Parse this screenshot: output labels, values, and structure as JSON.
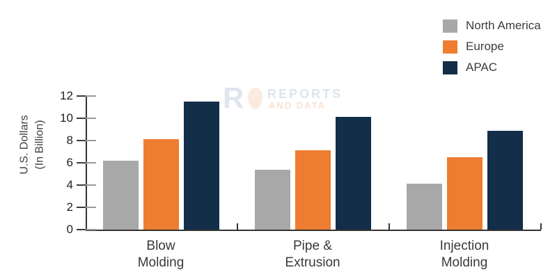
{
  "chart_data": {
    "type": "bar",
    "title": "",
    "categories": [
      "Blow Molding",
      "Pipe & Extrusion",
      "Injection Molding"
    ],
    "series": [
      {
        "name": "North America",
        "color": "#a8a8a8",
        "values": [
          6.2,
          5.4,
          4.1
        ]
      },
      {
        "name": "Europe",
        "color": "#ee7c31",
        "values": [
          8.1,
          7.1,
          6.5
        ]
      },
      {
        "name": "APAC",
        "color": "#122e49",
        "values": [
          11.5,
          10.1,
          8.9
        ]
      }
    ],
    "ylabel_line1": "U.S. Dollars",
    "ylabel_line2": "(In Billion)",
    "ylim": [
      0,
      12
    ],
    "yticks": [
      0,
      2,
      4,
      6,
      8,
      10,
      12
    ],
    "legend_position": "top-right",
    "grid": false,
    "axis_color": "#333333",
    "tick_label_color": "#1f1f1f"
  },
  "watermark": {
    "logo_letter": "R",
    "brand_top": "REPORTS",
    "brand_bottom": "AND DATA"
  }
}
